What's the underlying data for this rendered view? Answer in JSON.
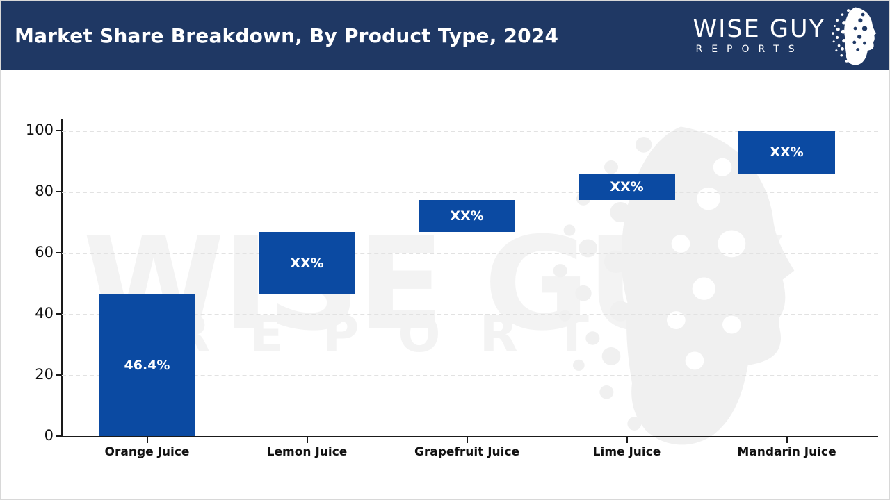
{
  "header": {
    "title": "Market Share Breakdown, By Product Type, 2024",
    "logo": {
      "line1": "WISE GUY",
      "line2": "REPORTS"
    }
  },
  "watermark": {
    "line1": "WISE GUY",
    "line2": "REPORTS"
  },
  "colors": {
    "header_bg": "#1F3864",
    "bar": "#0B4AA2",
    "bar_label": "#FFFFFF",
    "axis": "#1A1A1A",
    "grid": "#E2E2E2",
    "watermark": "#F3F3F3"
  },
  "chart_data": {
    "type": "bar",
    "subtype": "waterfall-floating-segments",
    "title": "Market Share Breakdown, By Product Type, 2024",
    "categories": [
      "Orange Juice",
      "Lemon Juice",
      "Grapefruit Juice",
      "Lime Juice",
      "Mandarin Juice"
    ],
    "segments": [
      {
        "category": "Orange Juice",
        "start": 0,
        "end": 46.4,
        "label": "46.4%"
      },
      {
        "category": "Lemon Juice",
        "start": 46.4,
        "end": 66.8,
        "label": "XX%"
      },
      {
        "category": "Grapefruit Juice",
        "start": 66.8,
        "end": 77.3,
        "label": "XX%"
      },
      {
        "category": "Lime Juice",
        "start": 77.3,
        "end": 85.9,
        "label": "XX%"
      },
      {
        "category": "Mandarin Juice",
        "start": 85.9,
        "end": 100,
        "label": "XX%"
      }
    ],
    "yticks": [
      0,
      20,
      40,
      60,
      80,
      100
    ],
    "ylim": [
      0,
      104
    ],
    "xlabel": "",
    "ylabel": "",
    "grid": "horizontal-dashed",
    "legend": "none"
  }
}
